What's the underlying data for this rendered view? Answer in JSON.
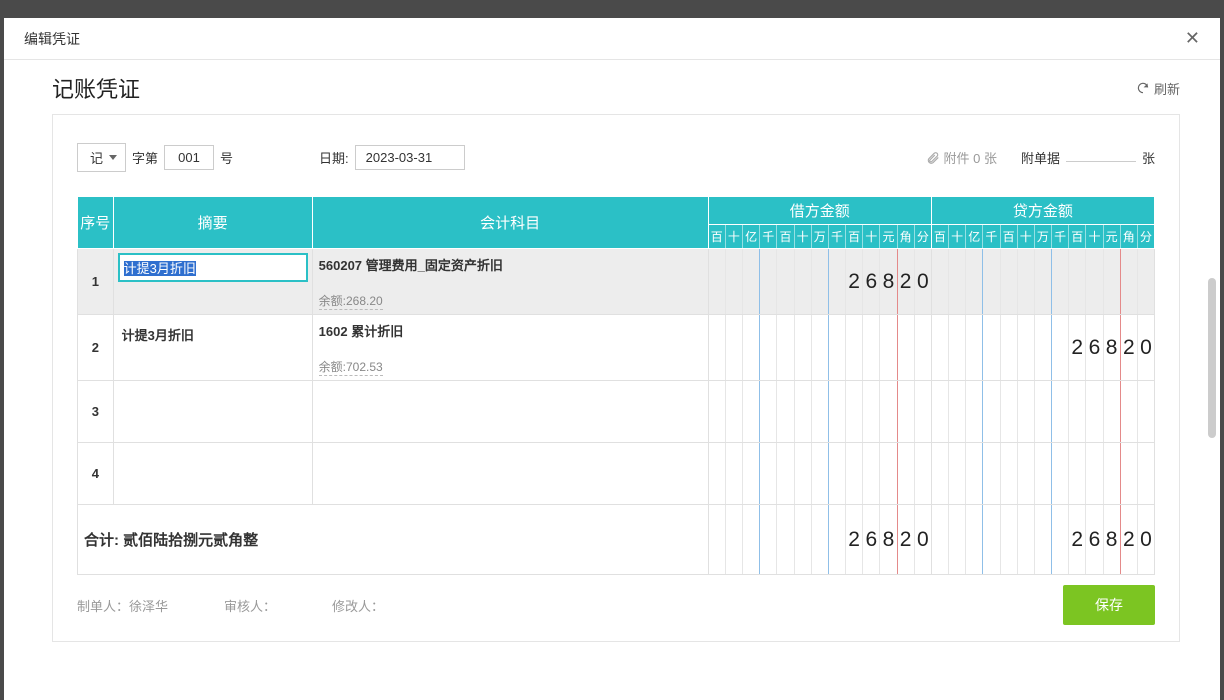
{
  "modal": {
    "title": "编辑凭证",
    "close": "✕"
  },
  "page": {
    "title": "记账凭证",
    "refresh": "刷新"
  },
  "topbar": {
    "voucherType": "记",
    "wordPrefix": "字第",
    "voucherNo": "001",
    "noSuffix": "号",
    "dateLabel": "日期:",
    "date": "2023-03-31",
    "attachmentLink": "附件 0 张",
    "attachLabel": "附单据",
    "attachSuffix": "张"
  },
  "columns": {
    "rownum": "序号",
    "summary": "摘要",
    "account": "会计科目",
    "debit": "借方金额",
    "credit": "贷方金额",
    "units": [
      "百",
      "十",
      "亿",
      "千",
      "百",
      "十",
      "万",
      "千",
      "百",
      "十",
      "元",
      "角",
      "分"
    ]
  },
  "amountStyle": {
    "blueIdx": [
      2,
      6
    ],
    "redIdx": [
      10
    ]
  },
  "rows": [
    {
      "num": "1",
      "summary": "计提3月折旧",
      "summaryEditing": true,
      "account": "560207 管理费用_固定资产折旧",
      "balance": "余额:268.20",
      "debit": [
        "",
        "",
        "",
        "",
        "",
        "",
        "",
        "",
        "2",
        "6",
        "8",
        "2",
        "0"
      ],
      "credit": [
        "",
        "",
        "",
        "",
        "",
        "",
        "",
        "",
        "",
        "",
        "",
        "",
        ""
      ]
    },
    {
      "num": "2",
      "summary": "计提3月折旧",
      "summaryEditing": false,
      "account": "1602 累计折旧",
      "balance": "余额:702.53",
      "debit": [
        "",
        "",
        "",
        "",
        "",
        "",
        "",
        "",
        "",
        "",
        "",
        "",
        ""
      ],
      "credit": [
        "",
        "",
        "",
        "",
        "",
        "",
        "",
        "",
        "2",
        "6",
        "8",
        "2",
        "0"
      ]
    },
    {
      "num": "3",
      "summary": "",
      "summaryEditing": false,
      "account": "",
      "balance": "",
      "debit": [
        "",
        "",
        "",
        "",
        "",
        "",
        "",
        "",
        "",
        "",
        "",
        "",
        ""
      ],
      "credit": [
        "",
        "",
        "",
        "",
        "",
        "",
        "",
        "",
        "",
        "",
        "",
        "",
        ""
      ]
    },
    {
      "num": "4",
      "summary": "",
      "summaryEditing": false,
      "account": "",
      "balance": "",
      "debit": [
        "",
        "",
        "",
        "",
        "",
        "",
        "",
        "",
        "",
        "",
        "",
        "",
        ""
      ],
      "credit": [
        "",
        "",
        "",
        "",
        "",
        "",
        "",
        "",
        "",
        "",
        "",
        "",
        ""
      ]
    }
  ],
  "total": {
    "label": "合计:",
    "words": "贰佰陆拾捌元贰角整",
    "debit": [
      "",
      "",
      "",
      "",
      "",
      "",
      "",
      "",
      "2",
      "6",
      "8",
      "2",
      "0"
    ],
    "credit": [
      "",
      "",
      "",
      "",
      "",
      "",
      "",
      "",
      "2",
      "6",
      "8",
      "2",
      "0"
    ]
  },
  "footer": {
    "preparer": "制单人：徐泽华",
    "auditor": "审核人：",
    "modifier": "修改人：",
    "save": "保存"
  }
}
